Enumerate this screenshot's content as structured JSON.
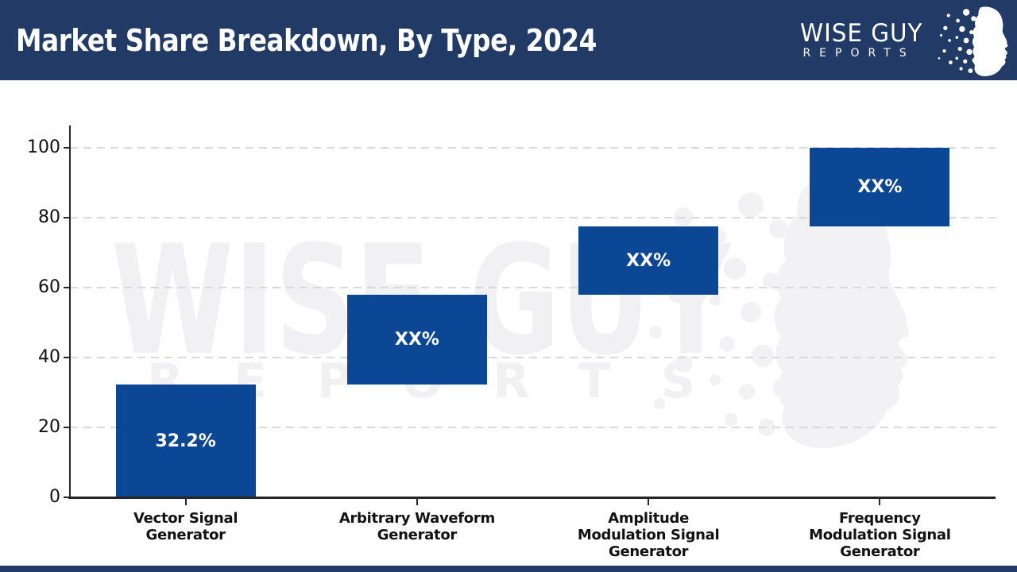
{
  "header": {
    "title": "Market Share Breakdown, By Type, 2024",
    "logo": {
      "name": "WISE GUY",
      "tagline": "REPORTS"
    }
  },
  "watermark": {
    "name": "WISE GUY",
    "tagline": "REPORTS"
  },
  "colors": {
    "header_bg": "#213a66",
    "footer_bg": "#213a66",
    "bar": "#0c4796",
    "bar_label": "#ffffff",
    "grid": "#d9d9d9",
    "axis": "#262626",
    "watermark": "#f1f1f4"
  },
  "chart_data": {
    "type": "bar",
    "subtype": "waterfall",
    "title": "Market Share Breakdown, By Type, 2024",
    "xlabel": "",
    "ylabel": "",
    "categories": [
      "Vector Signal\nGenerator",
      "Arbitrary Waveform\nGenerator",
      "Amplitude\nModulation Signal\nGenerator",
      "Frequency\nModulation Signal\nGenerator"
    ],
    "segments": [
      {
        "label": "32.2%",
        "from": 0,
        "to": 32.2
      },
      {
        "label": "XX%",
        "from": 32.2,
        "to": 57.9
      },
      {
        "label": "XX%",
        "from": 57.9,
        "to": 77.5
      },
      {
        "label": "XX%",
        "from": 77.5,
        "to": 100
      }
    ],
    "yticks": [
      0,
      20,
      40,
      60,
      80,
      100
    ],
    "ylim": [
      0,
      100
    ],
    "grid": "horizontal-dashed",
    "legend": "none"
  }
}
